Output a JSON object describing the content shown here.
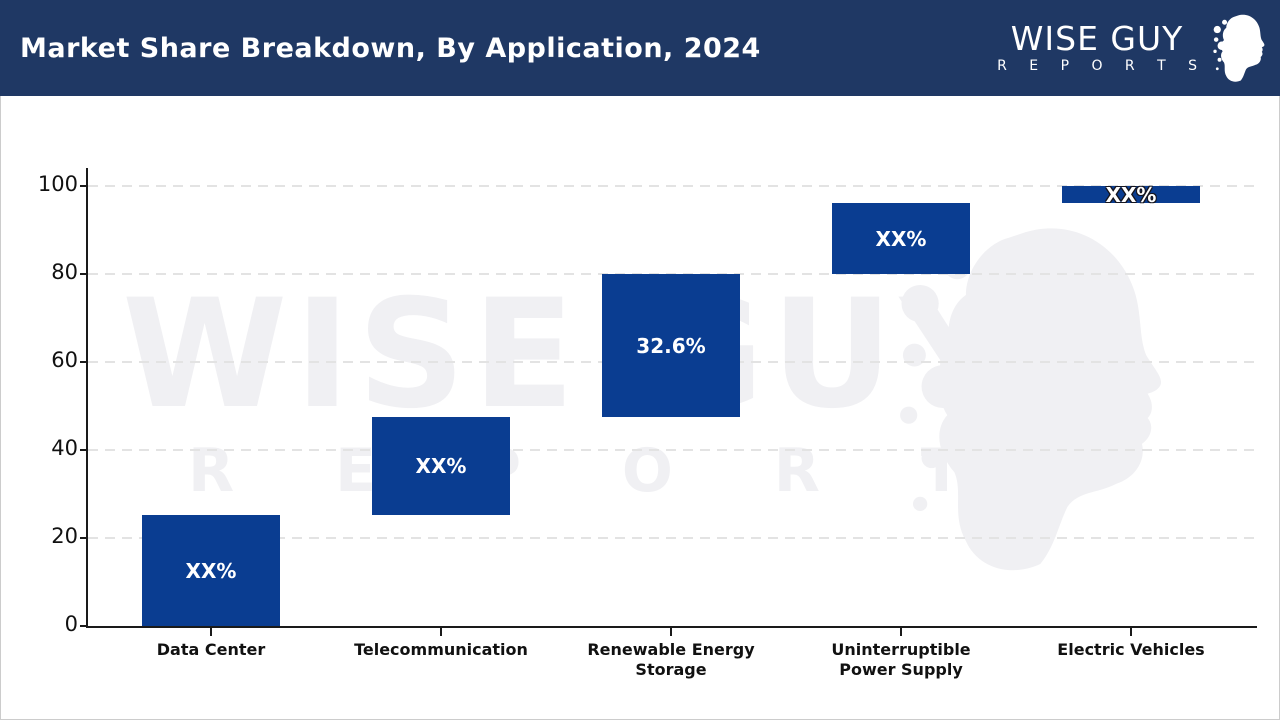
{
  "header": {
    "title": "Market Share Breakdown, By Application, 2024",
    "logo": {
      "line1": "WISE GUY",
      "line2": "R E P O R T S"
    }
  },
  "watermark": {
    "line1": "WISE GUY",
    "line2": "R E P O R T S"
  },
  "colors": {
    "header_bg": "#1f3864",
    "bar": "#0a3d91",
    "bar_label": "#ffffff",
    "grid": "#e3e3e3",
    "axis": "#1a1a1a",
    "tick_text": "#111111",
    "watermark": "#f0f0f3"
  },
  "chart_data": {
    "type": "bar",
    "subtype": "waterfall-stacked-cumulative",
    "title": "Market Share Breakdown, By Application, 2024",
    "xlabel": "",
    "ylabel": "",
    "ylim": [
      0,
      100
    ],
    "yticks": [
      0,
      20,
      40,
      60,
      80,
      100
    ],
    "grid": "horizontal-dashed",
    "legend": "none",
    "categories": [
      "Data Center",
      "Telecommunication",
      "Renewable Energy\nStorage",
      "Uninterruptible\nPower Supply",
      "Electric Vehicles"
    ],
    "segments": [
      {
        "category": "Data Center",
        "start": 0,
        "end": 25.2,
        "value": 25.2,
        "label": "XX%"
      },
      {
        "category": "Telecommunication",
        "start": 25.2,
        "end": 47.4,
        "value": 22.2,
        "label": "XX%"
      },
      {
        "category": "Renewable Energy\nStorage",
        "start": 47.4,
        "end": 80.0,
        "value": 32.6,
        "label": "32.6%"
      },
      {
        "category": "Uninterruptible\nPower Supply",
        "start": 80.0,
        "end": 96.1,
        "value": 16.1,
        "label": "XX%"
      },
      {
        "category": "Electric Vehicles",
        "start": 96.1,
        "end": 100.0,
        "value": 3.9,
        "label": "XX%"
      }
    ]
  }
}
